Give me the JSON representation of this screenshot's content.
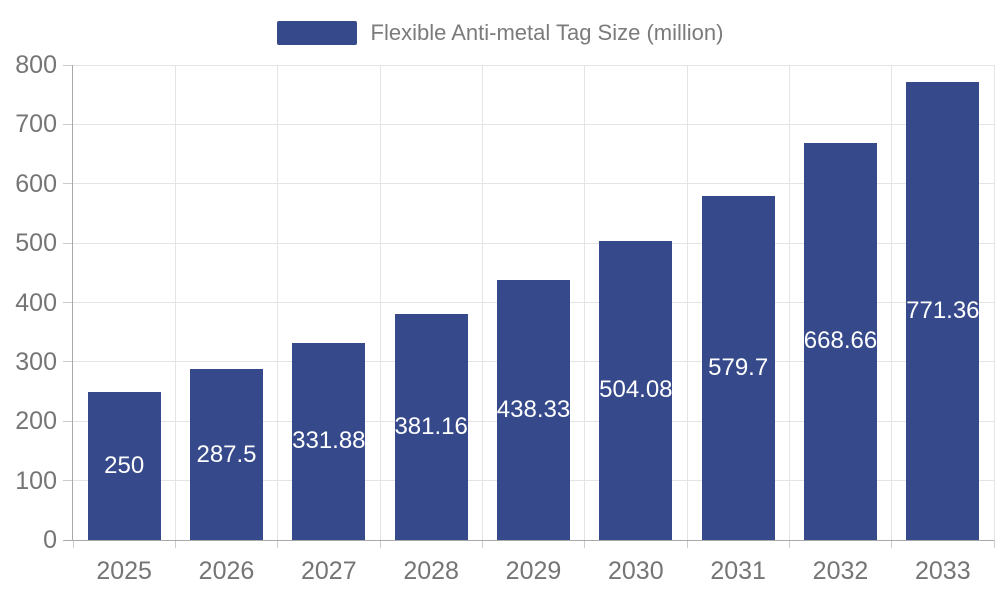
{
  "chart_data": {
    "type": "bar",
    "title": "Flexible Anti-metal Tag Size (million)",
    "legend": [
      "Flexible Anti-metal Tag Size (million)"
    ],
    "legend_position": "top-center",
    "categories": [
      "2025",
      "2026",
      "2027",
      "2028",
      "2029",
      "2030",
      "2031",
      "2032",
      "2033"
    ],
    "series": [
      {
        "name": "Flexible Anti-metal Tag Size (million)",
        "values": [
          250,
          287.5,
          331.88,
          381.16,
          438.33,
          504.08,
          579.7,
          668.66,
          771.36
        ]
      }
    ],
    "value_labels": [
      "250",
      "287.5",
      "331.88",
      "381.16",
      "438.33",
      "504.08",
      "579.7",
      "668.66",
      "771.36"
    ],
    "value_label_position": "inside-center",
    "xlabel": "",
    "ylabel": "",
    "ylim": [
      0,
      800
    ],
    "y_ticks": [
      0,
      100,
      200,
      300,
      400,
      500,
      600,
      700,
      800
    ],
    "grid": true,
    "colors": {
      "bar": "#364A8B",
      "grid_line": "#E4E4E4",
      "axis_line": "#A9A9A9",
      "tick_line": "#CCCCCC",
      "axis_text": "#757575",
      "legend_text": "#7B7B7B",
      "value_text": "#FFFFFF",
      "background": "#FFFFFF"
    }
  }
}
